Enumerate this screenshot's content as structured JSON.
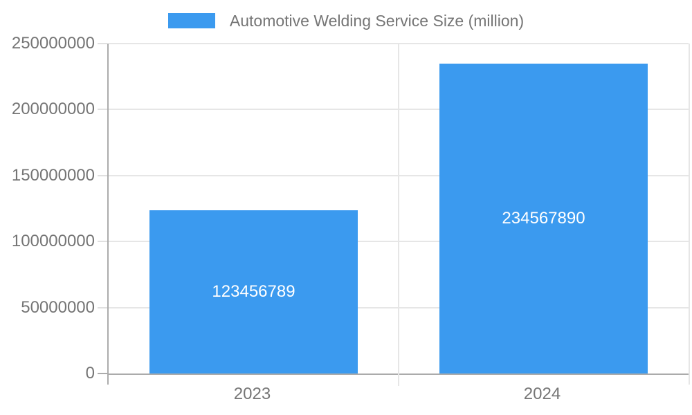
{
  "legend": {
    "label": "Automotive Welding Service Size (million)"
  },
  "chart_data": {
    "type": "bar",
    "title": "",
    "xlabel": "",
    "ylabel": "",
    "categories": [
      "2023",
      "2024"
    ],
    "series": [
      {
        "name": "Automotive Welding Service Size (million)",
        "values": [
          123456789,
          234567890
        ]
      }
    ],
    "value_labels": [
      "123456789",
      "234567890"
    ],
    "ylim": [
      0,
      250000000
    ],
    "yticks": [
      0,
      50000000,
      100000000,
      150000000,
      200000000,
      250000000
    ],
    "ytick_labels": [
      "0",
      "50000000",
      "100000000",
      "150000000",
      "200000000",
      "250000000"
    ],
    "grid": true,
    "legend_position": "top",
    "colors": {
      "bar": "#3B9AEF",
      "value_label": "#FFFFFF",
      "axis_text": "#757575",
      "gridline": "#E6E6E6",
      "axis_line": "#ABABAB",
      "background": "#FFFFFF"
    }
  }
}
